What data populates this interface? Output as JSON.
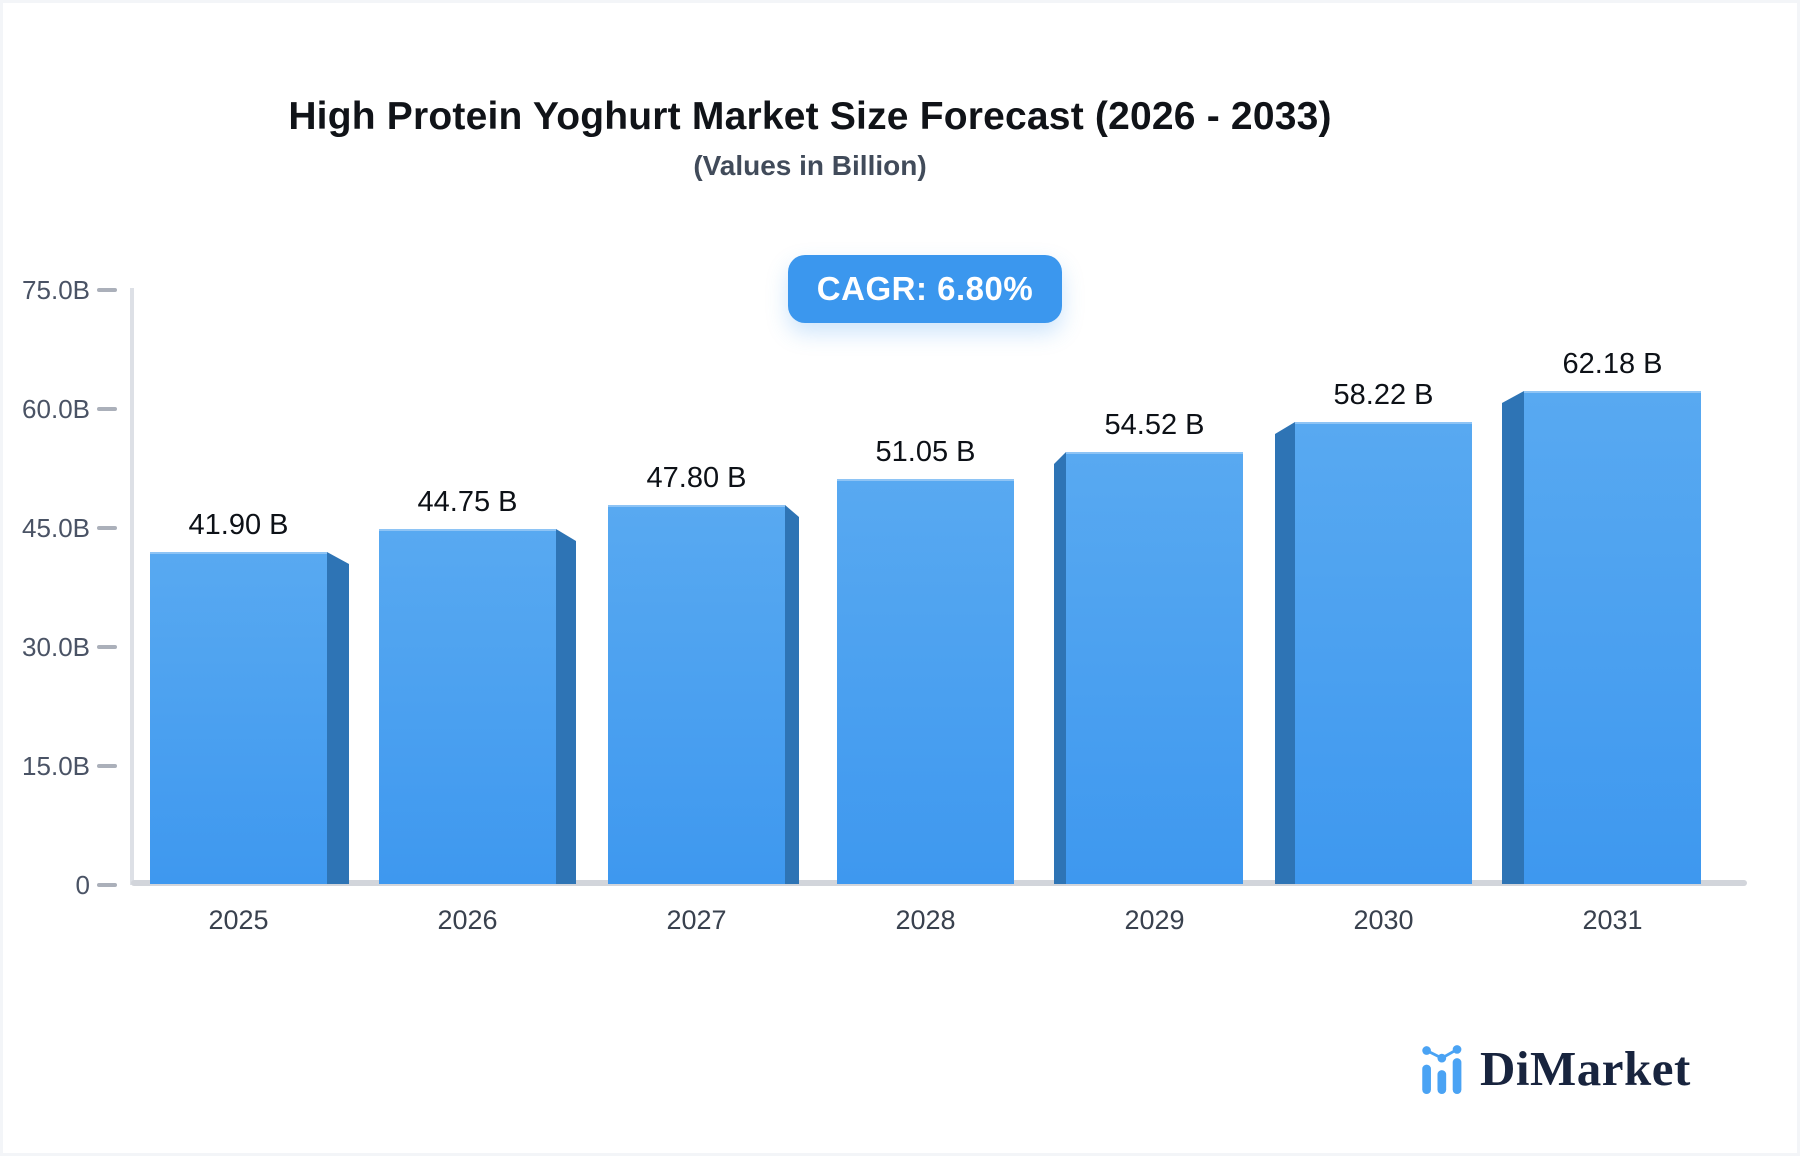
{
  "chart_data": {
    "type": "bar",
    "title": "High Protein Yoghurt Market Size Forecast (2026 - 2033)",
    "subtitle": "(Values in Billion)",
    "badge": "CAGR: 6.80%",
    "categories": [
      "2025",
      "2026",
      "2027",
      "2028",
      "2029",
      "2030",
      "2031"
    ],
    "values": [
      41.9,
      44.75,
      47.8,
      51.05,
      54.52,
      58.22,
      62.18
    ],
    "value_labels": [
      "41.90 B",
      "44.75 B",
      "47.80 B",
      "51.05 B",
      "54.52 B",
      "58.22 B",
      "62.18 B"
    ],
    "y_ticks": [
      {
        "value": 0,
        "label": "0"
      },
      {
        "value": 15,
        "label": "15.0B"
      },
      {
        "value": 30,
        "label": "30.0B"
      },
      {
        "value": 45,
        "label": "45.0B"
      },
      {
        "value": 60,
        "label": "60.0B"
      },
      {
        "value": 75,
        "label": "75.0B"
      }
    ],
    "ylim": [
      0,
      75
    ],
    "grid": false,
    "legend": false,
    "bar_style": "3d-perspective"
  },
  "colors": {
    "accent": "#3b97ee",
    "bar_face_top": "#58a9f1",
    "bar_face_bottom": "#3e98ef",
    "bar_side": "#2e74b5",
    "axis_line": "#d2d5db",
    "tick": "#abb0ba",
    "title_text": "#101318",
    "subtitle_text": "#414b5a",
    "badge_bg": "#3b97ee",
    "badge_text": "#ffffff",
    "logo_blue": "#4aa3f4",
    "logo_navy": "#18243e"
  },
  "brand": {
    "name": "DiMarket"
  }
}
